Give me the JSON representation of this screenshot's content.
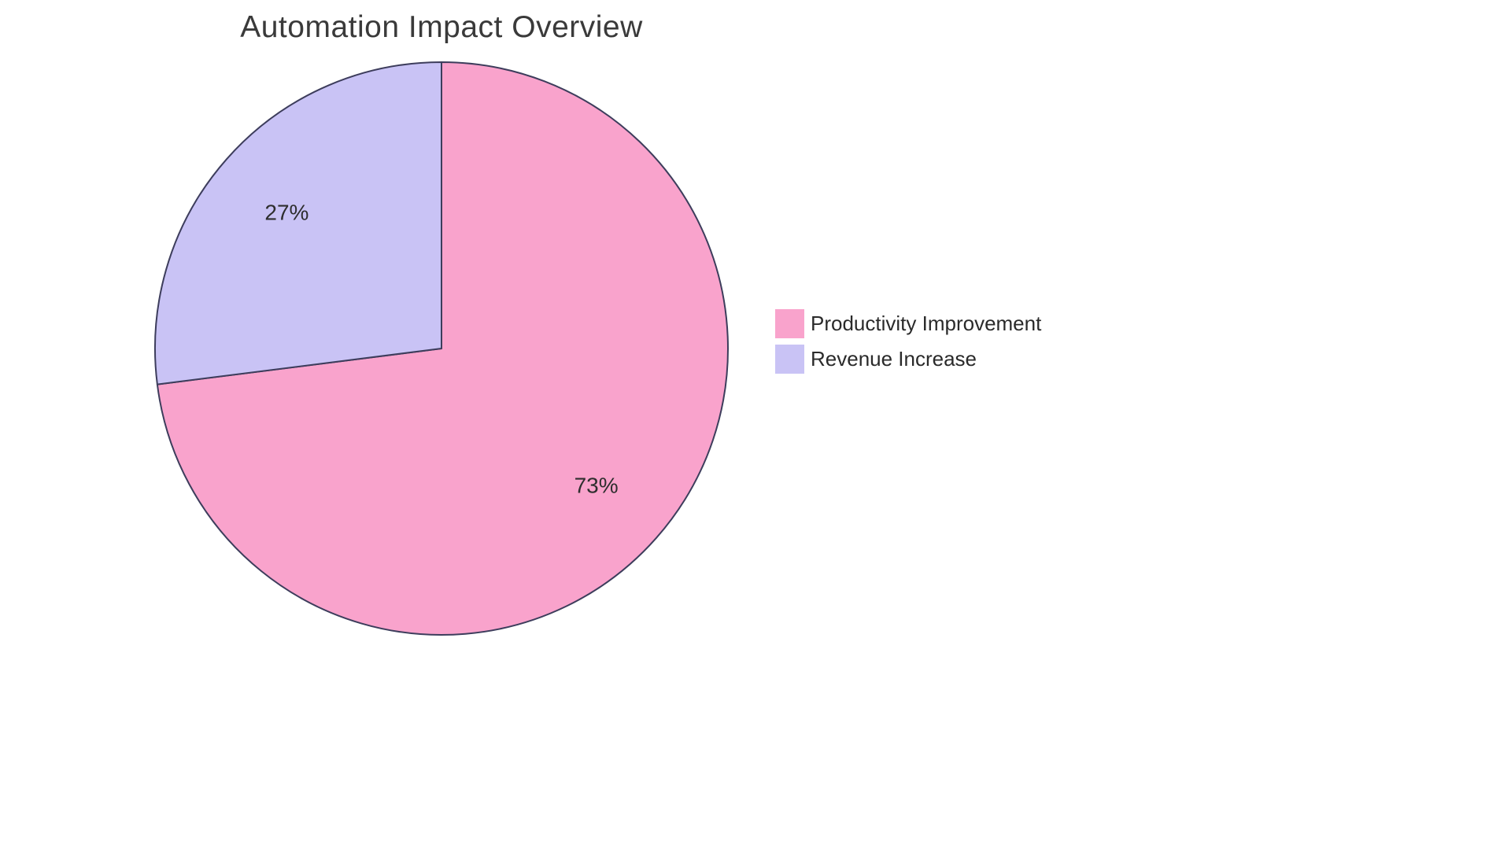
{
  "title": "Automation Impact Overview",
  "chart_data": {
    "type": "pie",
    "title": "Automation Impact Overview",
    "labels": [
      "Productivity Improvement",
      "Revenue Increase"
    ],
    "values": [
      73,
      27
    ],
    "percent_labels": [
      "73%",
      "27%"
    ],
    "colors": [
      "#F9A3CC",
      "#C9C3F5"
    ],
    "stroke_color": "#3d3d5c",
    "stroke_width": 2,
    "start_angle_deg": 0,
    "direction": "clockwise",
    "legend_position": "right",
    "grid": false
  },
  "legend": {
    "items": [
      {
        "label": "Productivity Improvement",
        "color": "#F9A3CC"
      },
      {
        "label": "Revenue Increase",
        "color": "#C9C3F5"
      }
    ]
  }
}
